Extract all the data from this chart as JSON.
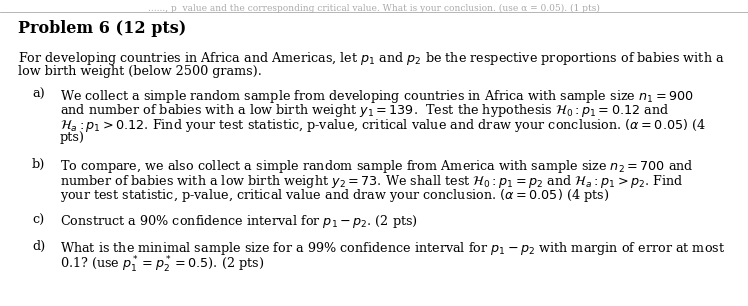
{
  "bg_color": "#ffffff",
  "text_color": "#000000",
  "title": "Problem 6 (12 pts)",
  "title_fontsize": 11.5,
  "body_fontsize": 9.2,
  "top_text": "......, p  value and the corresponding critical value. What is your conclusion. (use α = 0.05). (1 pts)",
  "intro_line1": "For developing countries in Africa and Americas, let $p_1$ and $p_2$ be the respective proportions of babies with a",
  "intro_line2": "low birth weight (below 2500 grams).",
  "item_a_label": "a)",
  "item_a_line1": "We collect a simple random sample from developing countries in Africa with sample size $n_1 = 900$",
  "item_a_line2": "and number of babies with a low birth weight $y_1 = 139$.  Test the hypothesis $\\mathcal{H}_0 : p_1 = 0.12$ and",
  "item_a_line3": "$\\mathcal{H}_a : p_1 > 0.12$. Find your test statistic, p-value, critical value and draw your conclusion. $(\\alpha = 0.05)$ (4",
  "item_a_line4": "pts)",
  "item_b_label": "b)",
  "item_b_line1": "To compare, we also collect a simple random sample from America with sample size $n_2 = 700$ and",
  "item_b_line2": "number of babies with a low birth weight $y_2 = 73$. We shall test $\\mathcal{H}_0 : p_1 = p_2$ and $\\mathcal{H}_a : p_1 > p_2$. Find",
  "item_b_line3": "your test statistic, p-value, critical value and draw your conclusion. $(\\alpha = 0.05)$ (4 pts)",
  "item_c_label": "c)",
  "item_c_line1": "Construct a 90% confidence interval for $p_1 - p_2$. (2 pts)",
  "item_d_label": "d)",
  "item_d_line1": "What is the minimal sample size for a 99% confidence interval for $p_1 - p_2$ with margin of error at most",
  "item_d_line2": "0.1? (use $p_1^* = p_2^* = 0.5$). (2 pts)"
}
